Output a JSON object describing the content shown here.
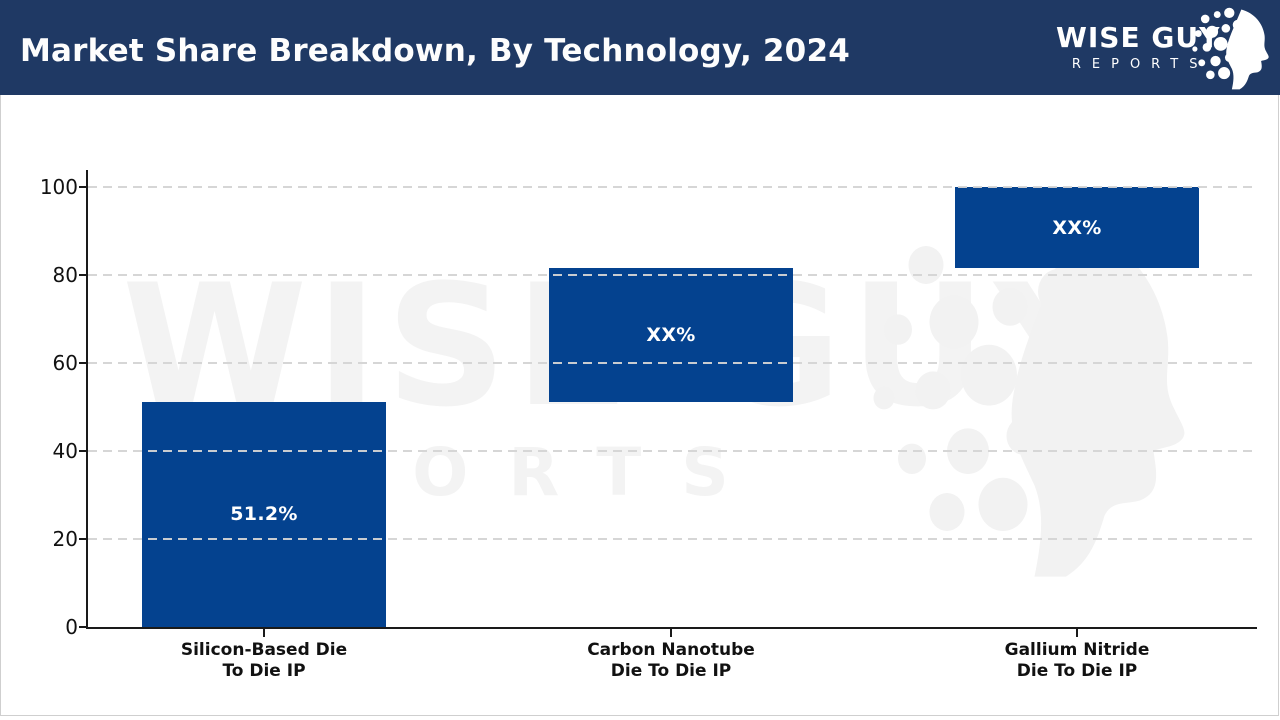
{
  "header": {
    "title": "Market Share Breakdown, By Technology, 2024",
    "logo": {
      "line1": "WISE GUY",
      "line2": "REPORTS"
    }
  },
  "watermark": {
    "line1": "WISE GUY",
    "line2": "REPORTS"
  },
  "colors": {
    "header_bg": "#1f3964",
    "bar": "#04428f",
    "grid": "#d4d4d4",
    "axis": "#1a1a1a",
    "bar_label": "#ffffff",
    "title_text": "#fdfdfd",
    "watermark": "#f3f3f3"
  },
  "chart_data": {
    "type": "bar",
    "subtype": "waterfall",
    "title": "Market Share Breakdown, By Technology, 2024",
    "categories": [
      "Silicon-Based Die To Die IP",
      "Carbon Nanotube Die To Die IP",
      "Gallium Nitride Die To Die IP"
    ],
    "categories_two_line": [
      [
        "Silicon-Based Die",
        "To Die IP"
      ],
      [
        "Carbon Nanotube",
        "Die To Die IP"
      ],
      [
        "Gallium Nitride",
        "Die To Die IP"
      ]
    ],
    "segments": [
      {
        "start": 0,
        "end": 51.2,
        "label": "51.2%"
      },
      {
        "start": 51.2,
        "end": 81.5,
        "label": "XX%"
      },
      {
        "start": 81.5,
        "end": 100,
        "label": "XX%"
      }
    ],
    "ylim": [
      0,
      100
    ],
    "yticks": [
      0,
      20,
      40,
      60,
      80,
      100
    ],
    "xlabel": "",
    "ylabel": "",
    "grid": "horizontal dashed, drawn over bars",
    "legend": "none",
    "bar_color": "#04428f"
  }
}
